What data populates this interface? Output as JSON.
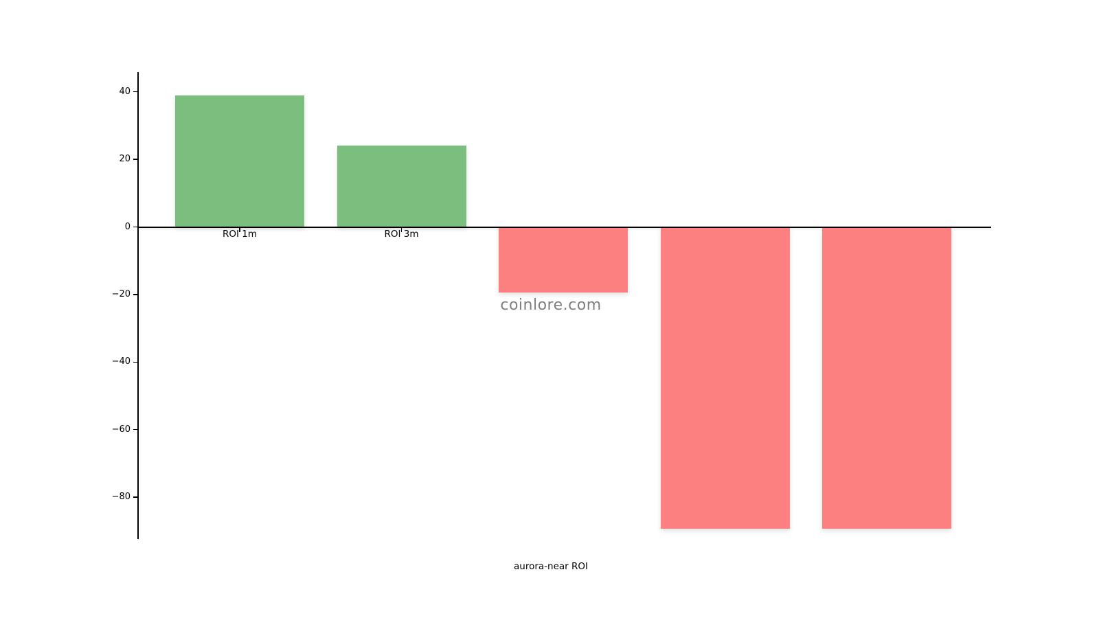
{
  "watermark": "coinlore.com",
  "footer_label": "aurora-near ROI",
  "colors": {
    "positive_bar": "#7CBE7E",
    "negative_bar": "#FD8080",
    "axis": "#000000",
    "watermark_text": "#7f7f7f"
  },
  "chart_data": {
    "type": "bar",
    "title": "aurora-near ROI",
    "xlabel": "aurora-near ROI",
    "ylabel": "",
    "categories": [
      "ROI 1m",
      "ROI 3m",
      "",
      "",
      ""
    ],
    "values": [
      39,
      24,
      -19,
      -89,
      -89
    ],
    "bar_colors": [
      "#7CBE7E",
      "#7CBE7E",
      "#FD8080",
      "#FD8080",
      "#FD8080"
    ],
    "yticks": [
      40,
      20,
      0,
      -20,
      -40,
      -60,
      -80
    ],
    "ylim": [
      -92,
      46
    ],
    "grid": false,
    "legend": "none",
    "watermark": "coinlore.com"
  }
}
